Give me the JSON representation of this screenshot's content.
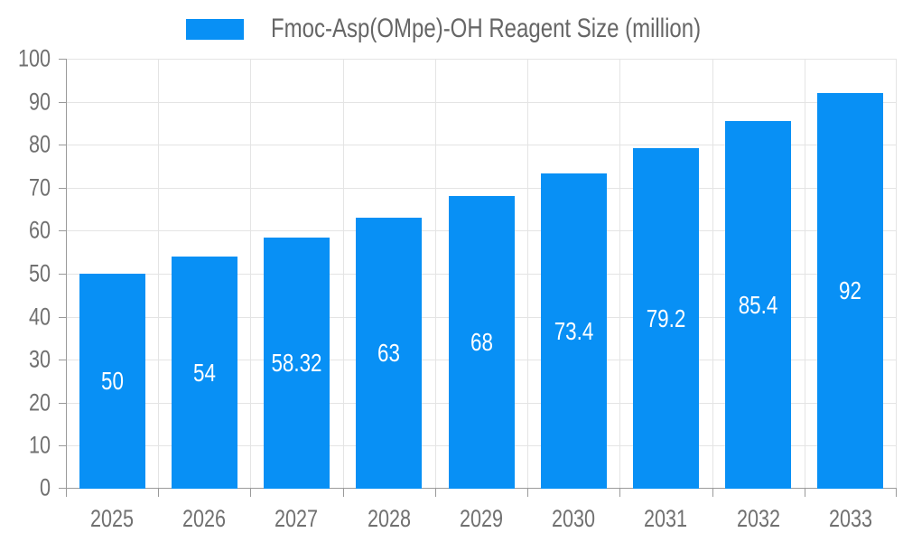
{
  "chart_data": {
    "type": "bar",
    "title": "Fmoc-Asp(OMpe)-OH Reagent Size (million)",
    "legend_position": "top",
    "categories": [
      "2025",
      "2026",
      "2027",
      "2028",
      "2029",
      "2030",
      "2031",
      "2032",
      "2033"
    ],
    "values": [
      50,
      54,
      58.32,
      63,
      68,
      73.4,
      79.2,
      85.4,
      92
    ],
    "xlabel": "",
    "ylabel": "",
    "ylim": [
      0,
      100
    ],
    "yticks": [
      0,
      10,
      20,
      30,
      40,
      50,
      60,
      70,
      80,
      90,
      100
    ],
    "grid": true,
    "bar_label_position": "inside-center",
    "colors": {
      "bar": "#0890F5",
      "bar_label": "#FFFFFF",
      "axis": "#9A9A9A",
      "grid": "#E4E4E4",
      "tick_text": "#707070",
      "legend_text": "#666666",
      "background": "#FFFFFF"
    }
  }
}
